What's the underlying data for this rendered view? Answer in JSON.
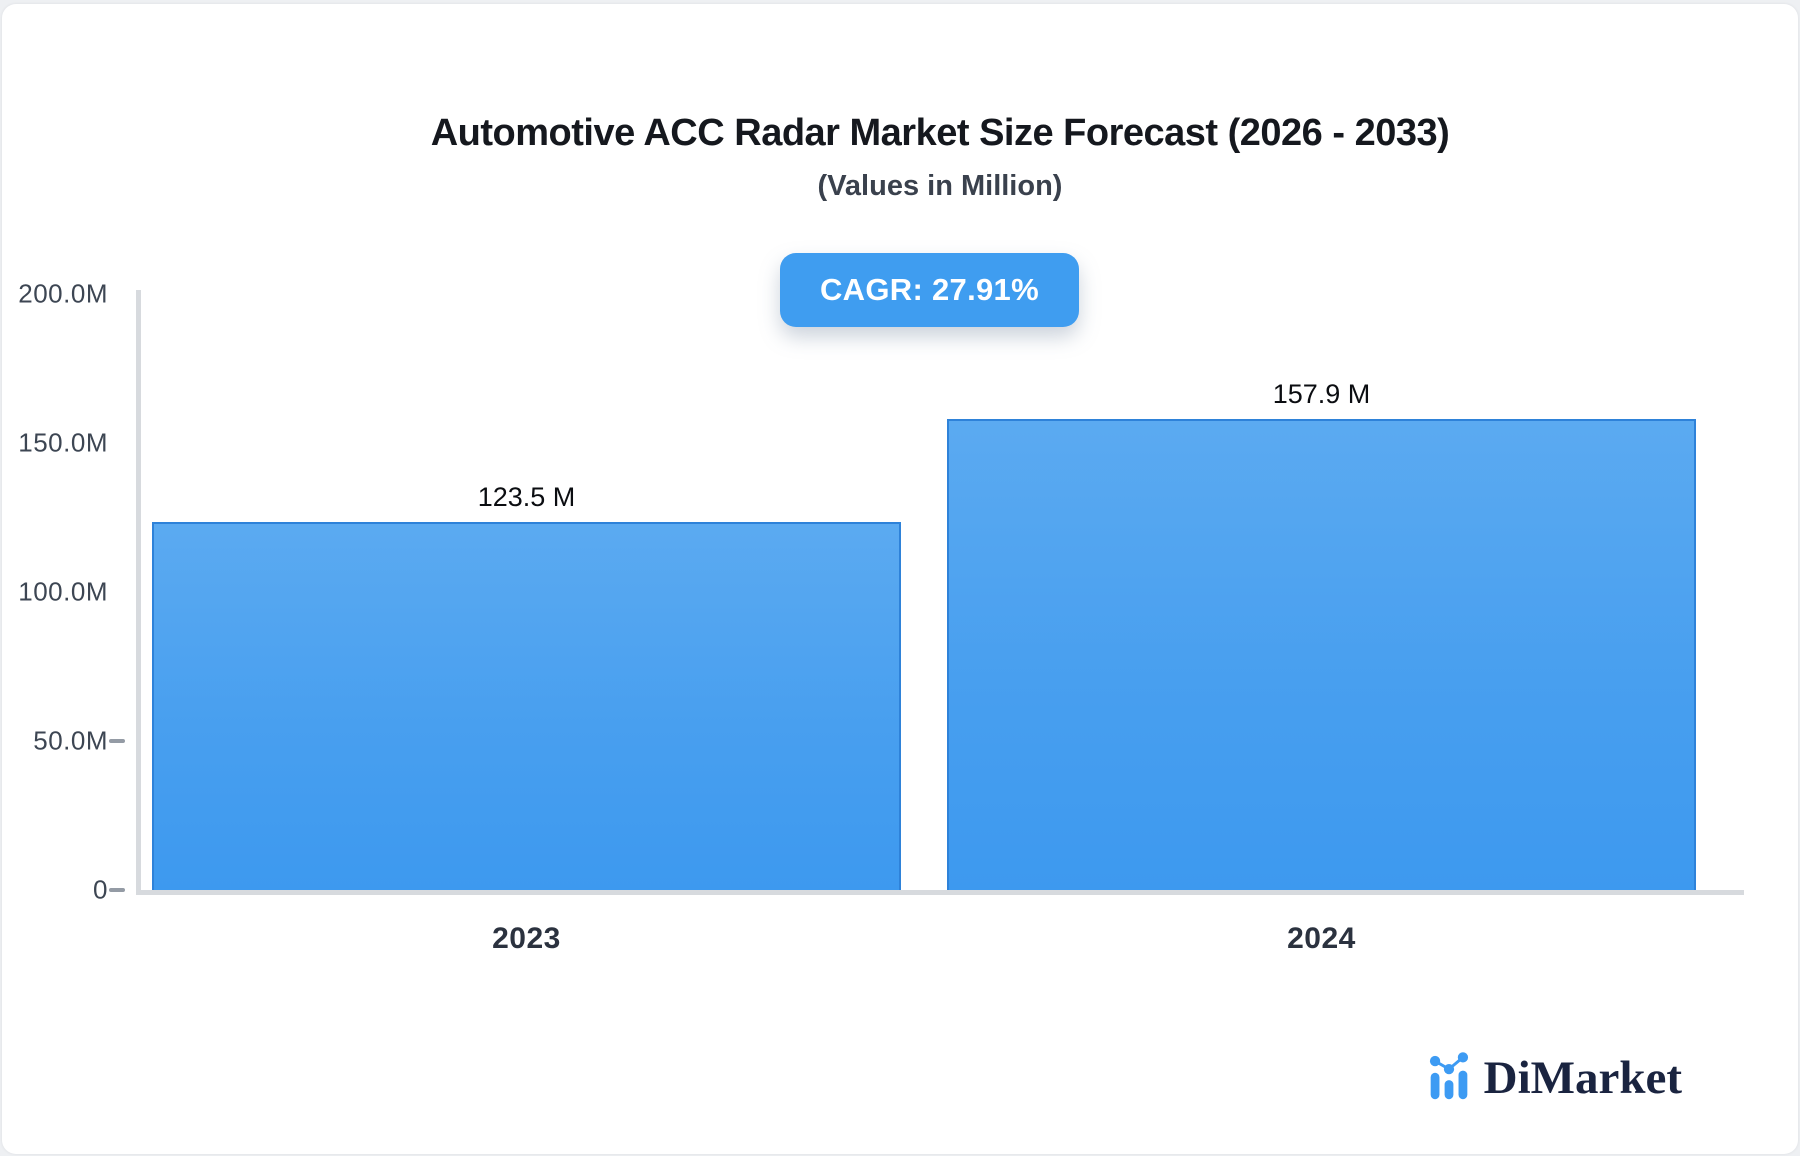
{
  "header": {
    "title": "Automotive ACC Radar Market Size Forecast (2026 - 2033)",
    "subtitle": "(Values in Million)",
    "cagr_label": "CAGR: 27.91%"
  },
  "chart_data": {
    "type": "bar",
    "title": "Automotive ACC Radar Market Size Forecast (2026 - 2033)",
    "subtitle": "(Values in Million)",
    "categories": [
      "2023",
      "2024"
    ],
    "values": [
      123.5,
      157.9
    ],
    "value_labels": [
      "123.5 M",
      "157.9 M"
    ],
    "cagr_percent": 27.91,
    "xlabel": "",
    "ylabel": "",
    "ylim": [
      0,
      200
    ],
    "y_ticks": [
      "200.0M",
      "150.0M",
      "100.0M",
      "50.0M",
      "0"
    ],
    "grid": "off",
    "legend": "none",
    "bar_color_top": "#5baaf1",
    "bar_color_bottom": "#3d99ef",
    "bar_border_color": "#2e82d9",
    "axis_color": "#d7dade",
    "badge_color": "#3f9df0"
  },
  "logo": {
    "text": "DiMarket",
    "icon": "bar-chart-logo-icon",
    "icon_color": "#3d9bf3",
    "text_color": "#1a2440"
  }
}
